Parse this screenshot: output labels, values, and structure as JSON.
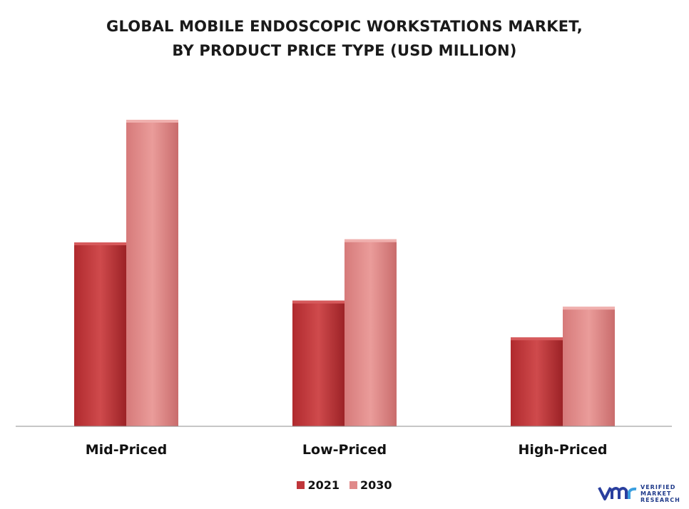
{
  "title_lines": [
    "GLOBAL MOBILE ENDOSCOPIC WORKSTATIONS MARKET,",
    "BY PRODUCT PRICE TYPE (USD MILLION)"
  ],
  "colors": {
    "s2021": "#c0363a",
    "s2030": "#e08a8a",
    "axis": "#8c8c8c"
  },
  "chart_data": {
    "type": "bar",
    "title": "GLOBAL MOBILE ENDOSCOPIC WORKSTATIONS MARKET, BY PRODUCT PRICE TYPE (USD MILLION)",
    "categories": [
      "Mid-Priced",
      "Low-Priced",
      "High-Priced"
    ],
    "series": [
      {
        "name": "2021",
        "values": [
          60,
          41,
          29
        ]
      },
      {
        "name": "2030",
        "values": [
          100,
          61,
          39
        ]
      }
    ],
    "ylim": [
      0,
      100
    ],
    "grid": false,
    "legend": "bottom-center"
  },
  "logo": {
    "mark": "vmr",
    "lines": [
      "VERIFIED",
      "MARKET",
      "RESEARCH"
    ]
  }
}
